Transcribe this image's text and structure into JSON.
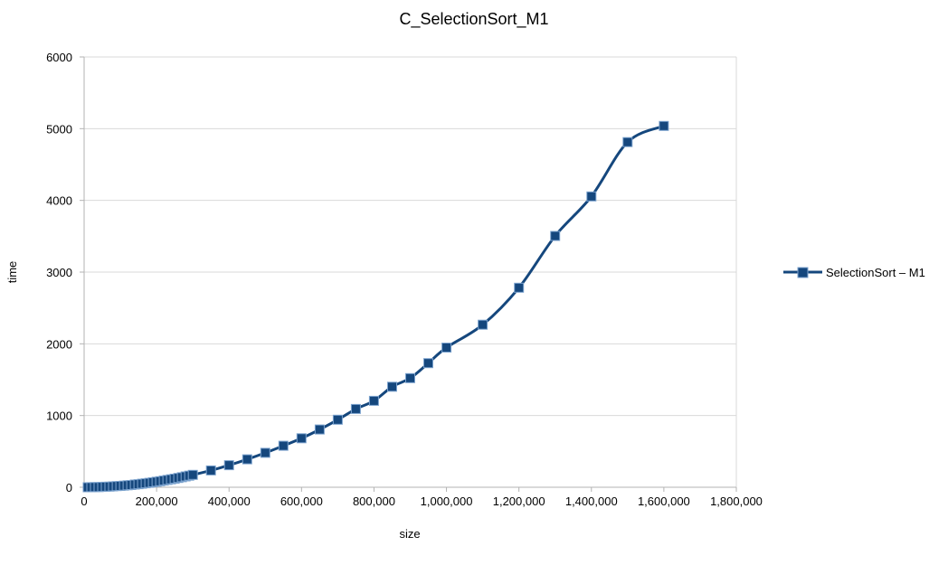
{
  "page": {
    "background": "#FFFFFF"
  },
  "chart_data": {
    "type": "line",
    "title": "C_SelectionSort_M1",
    "xlabel": "size",
    "ylabel": "time",
    "xlim": [
      0,
      1800000
    ],
    "ylim": [
      0,
      6000
    ],
    "grid": "horizontal",
    "legend_position": "right-middle",
    "line_smooth": true,
    "marker": "square",
    "colors": {
      "series": "#15477D",
      "marker_border": "#7BA2CE",
      "grid": "#D9D9D9",
      "axis": "#B3B3B3",
      "text": "#000000",
      "background": "#FFFFFF"
    },
    "xticks": {
      "values": [
        0,
        200000,
        400000,
        600000,
        800000,
        1000000,
        1200000,
        1400000,
        1600000,
        1800000
      ],
      "labels": [
        "0",
        "200,000",
        "400,000",
        "600,000",
        "800,000",
        "1,000,000",
        "1,200,000",
        "1,400,000",
        "1,600,000",
        "1,800,000"
      ]
    },
    "yticks": {
      "values": [
        0,
        1000,
        2000,
        3000,
        4000,
        5000,
        6000
      ],
      "labels": [
        "0",
        "1000",
        "2000",
        "3000",
        "4000",
        "5000",
        "6000"
      ]
    },
    "legend": [
      {
        "name": "SelectionSort – M1"
      }
    ],
    "series": [
      {
        "name": "SelectionSort – M1",
        "points": [
          [
            10000,
            0
          ],
          [
            20000,
            1
          ],
          [
            30000,
            2
          ],
          [
            40000,
            3
          ],
          [
            50000,
            5
          ],
          [
            60000,
            7
          ],
          [
            70000,
            9
          ],
          [
            80000,
            12
          ],
          [
            90000,
            16
          ],
          [
            100000,
            19
          ],
          [
            110000,
            23
          ],
          [
            120000,
            28
          ],
          [
            130000,
            32
          ],
          [
            140000,
            38
          ],
          [
            150000,
            43
          ],
          [
            160000,
            49
          ],
          [
            170000,
            56
          ],
          [
            180000,
            62
          ],
          [
            190000,
            69
          ],
          [
            200000,
            77
          ],
          [
            210000,
            85
          ],
          [
            220000,
            93
          ],
          [
            230000,
            102
          ],
          [
            240000,
            111
          ],
          [
            250000,
            120
          ],
          [
            260000,
            130
          ],
          [
            270000,
            140
          ],
          [
            280000,
            151
          ],
          [
            290000,
            161
          ],
          [
            300000,
            173
          ],
          [
            350000,
            235
          ],
          [
            400000,
            307
          ],
          [
            450000,
            389
          ],
          [
            500000,
            480
          ],
          [
            550000,
            578
          ],
          [
            600000,
            683
          ],
          [
            650000,
            806
          ],
          [
            700000,
            941
          ],
          [
            750000,
            1092
          ],
          [
            800000,
            1205
          ],
          [
            850000,
            1402
          ],
          [
            900000,
            1521
          ],
          [
            950000,
            1731
          ],
          [
            1000000,
            1948
          ],
          [
            1100000,
            2266
          ],
          [
            1200000,
            2782
          ],
          [
            1300000,
            3504
          ],
          [
            1400000,
            4055
          ],
          [
            1500000,
            4812
          ],
          [
            1600000,
            5038
          ]
        ]
      }
    ]
  }
}
